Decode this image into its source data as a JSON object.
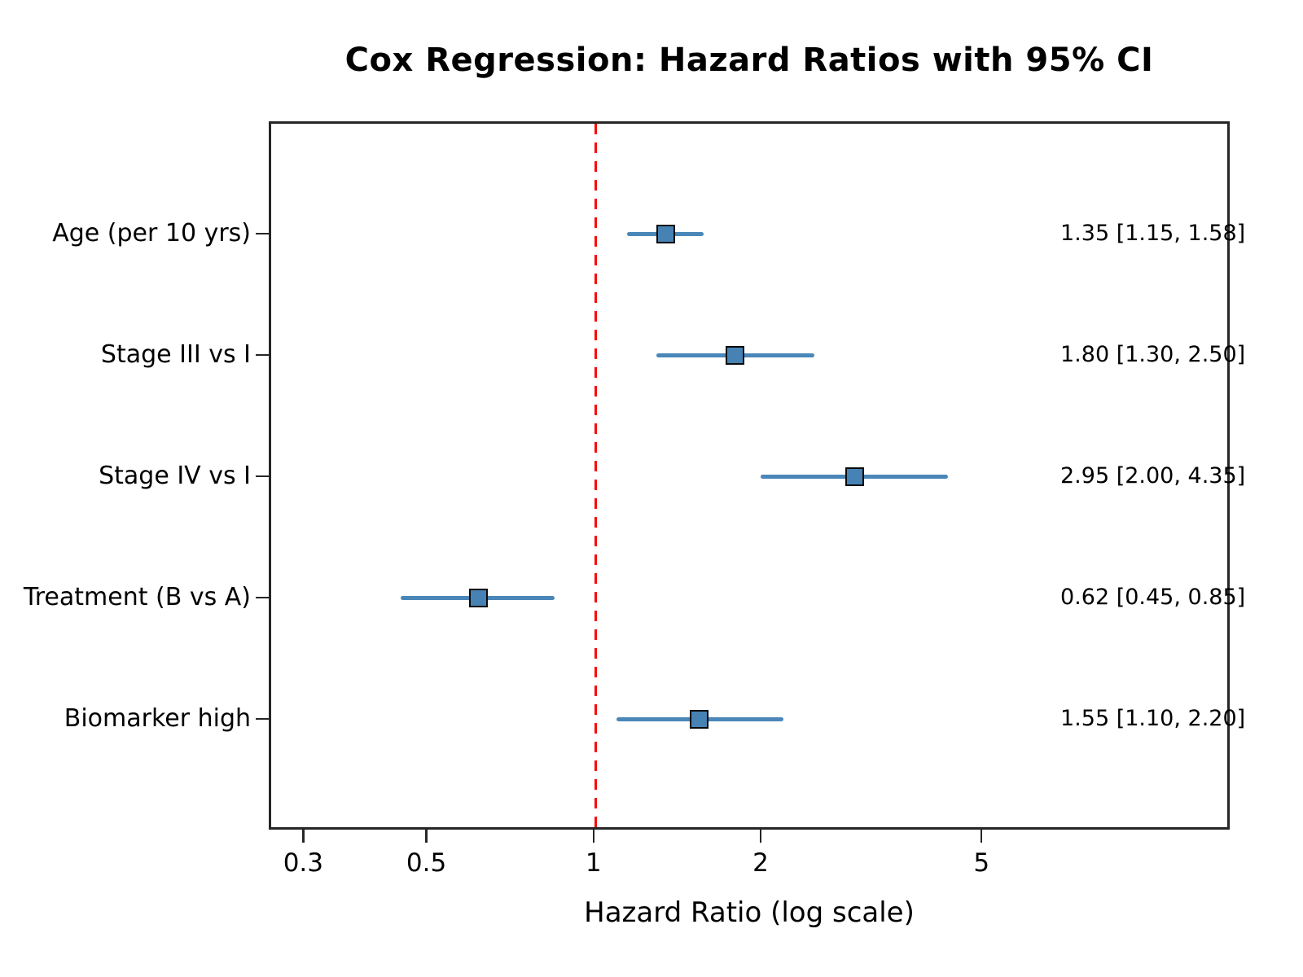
{
  "title": "Cox Regression: Hazard Ratios with 95% CI",
  "chart_data": {
    "type": "scatter",
    "subtype": "forest-plot",
    "title": "Cox Regression: Hazard Ratios with 95% CI",
    "xlabel": "Hazard Ratio (log scale)",
    "ylabel": "",
    "x_scale": "log",
    "xlim": [
      0.26,
      14.0
    ],
    "x_ticks": [
      0.3,
      0.5,
      1,
      2,
      5
    ],
    "reference_line": 1.0,
    "grid": false,
    "legend": false,
    "rows": [
      {
        "label": "Age (per 10 yrs)",
        "hr": 1.35,
        "ci_low": 1.15,
        "ci_high": 1.58,
        "annotation": "1.35 [1.15, 1.58]"
      },
      {
        "label": "Stage III vs I",
        "hr": 1.8,
        "ci_low": 1.3,
        "ci_high": 2.5,
        "annotation": "1.80 [1.30, 2.50]"
      },
      {
        "label": "Stage IV vs I",
        "hr": 2.95,
        "ci_low": 2.0,
        "ci_high": 4.35,
        "annotation": "2.95 [2.00, 4.35]"
      },
      {
        "label": "Treatment (B vs A)",
        "hr": 0.62,
        "ci_low": 0.45,
        "ci_high": 0.85,
        "annotation": "0.62 [0.45, 0.85]"
      },
      {
        "label": "Biomarker high",
        "hr": 1.55,
        "ci_low": 1.1,
        "ci_high": 2.2,
        "annotation": "1.55 [1.10, 2.20]"
      }
    ],
    "colors": {
      "marker_fill": "#4682B4",
      "marker_edge": "#0a0a0a",
      "ci_line": "#4A86B8",
      "reference_line": "#fb0a0a",
      "axis": "#262626",
      "text": "#000000"
    }
  }
}
